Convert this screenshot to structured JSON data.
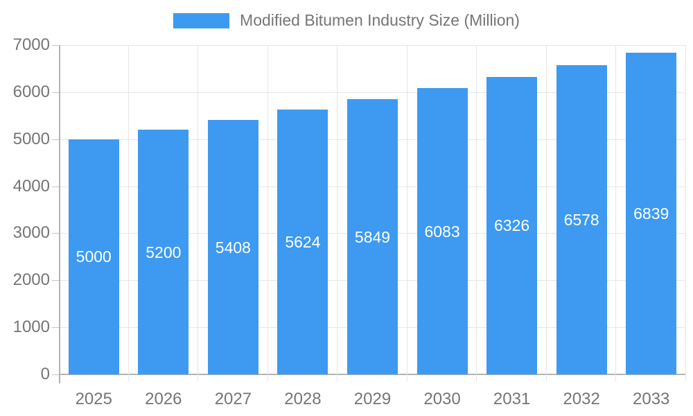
{
  "chart_data": {
    "type": "bar",
    "title": "Modified Bitumen Industry Size (Million)",
    "categories": [
      "2025",
      "2026",
      "2027",
      "2028",
      "2029",
      "2030",
      "2031",
      "2032",
      "2033"
    ],
    "values": [
      5000,
      5200,
      5408,
      5624,
      5849,
      6083,
      6326,
      6578,
      6839
    ],
    "xlabel": "",
    "ylabel": "",
    "ylim": [
      0,
      7000
    ],
    "ytick_step": 1000,
    "ytick_labels": [
      "0",
      "1000",
      "2000",
      "3000",
      "4000",
      "5000",
      "6000",
      "7000"
    ],
    "grid": "both",
    "legend_position": "top",
    "value_labels": "inside-center",
    "colors": {
      "bar": "#3D9AF0",
      "value_label": "#FFFFFF",
      "axis_text": "#757575",
      "axis_line": "#B3B3B3",
      "grid_line": "#E6E6E6",
      "background": "#FFFFFF"
    }
  }
}
